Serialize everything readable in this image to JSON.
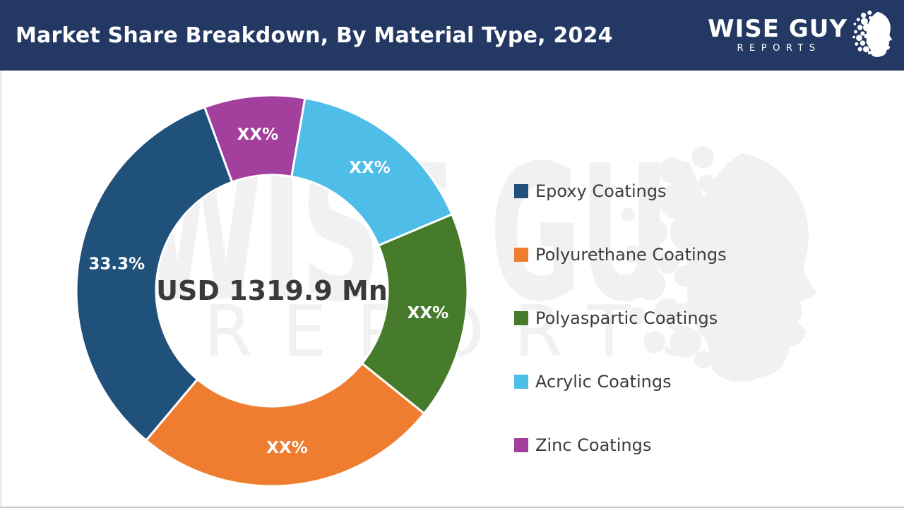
{
  "header": {
    "title": "Market Share Breakdown, By Material Type, 2024",
    "bg_color": "#233863",
    "logo": {
      "line1": "WISE GUY",
      "line2": "REPORTS"
    }
  },
  "watermark": {
    "line1": "WISE GUY",
    "line2": "REPORTS"
  },
  "chart_data": {
    "type": "pie",
    "subtype": "donut",
    "title": "Market Share Breakdown, By Material Type, 2024",
    "center_label": "USD 1319.9 Mn",
    "legend_position": "right",
    "segments": [
      {
        "label": "Epoxy Coatings",
        "display_value": "33.3%",
        "value": 33.3,
        "color": "#20517A"
      },
      {
        "label": "Polyurethane Coatings",
        "display_value": "XX%",
        "value": 25.3,
        "color": "#EE7D2F"
      },
      {
        "label": "Polyaspartic Coatings",
        "display_value": "XX%",
        "value": 17.2,
        "color": "#467B2B"
      },
      {
        "label": "Acrylic Coatings",
        "display_value": "XX%",
        "value": 15.9,
        "color": "#4EBEE8"
      },
      {
        "label": "Zinc Coatings",
        "display_value": "XX%",
        "value": 8.3,
        "color": "#A33F9D"
      }
    ]
  }
}
